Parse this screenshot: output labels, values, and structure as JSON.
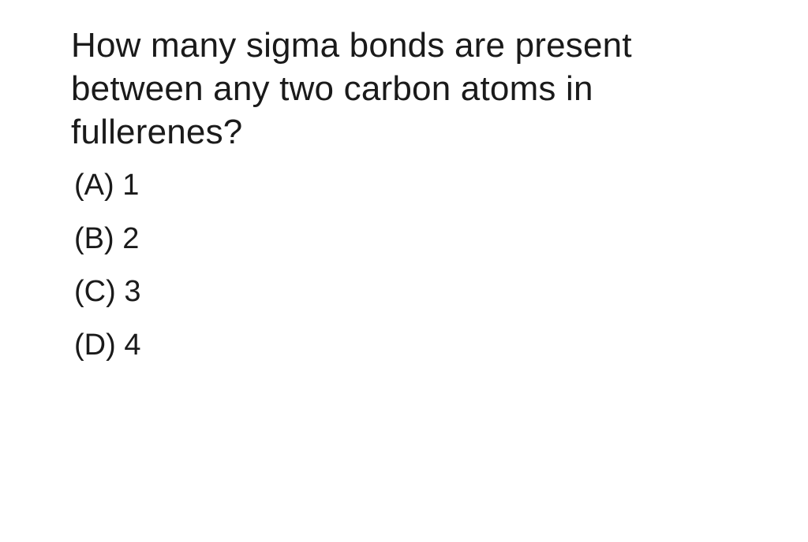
{
  "text_color": "#1a1a1a",
  "background_color": "#ffffff",
  "question": {
    "text": "How many sigma bonds are present between any two carbon atoms in fullerenes?",
    "fontsize": 44,
    "fontweight": 400
  },
  "options": [
    {
      "label": "(A)",
      "value": "1"
    },
    {
      "label": "(B)",
      "value": "2"
    },
    {
      "label": "(C)",
      "value": "3"
    },
    {
      "label": "(D)",
      "value": "4"
    }
  ],
  "option_fontsize": 38
}
